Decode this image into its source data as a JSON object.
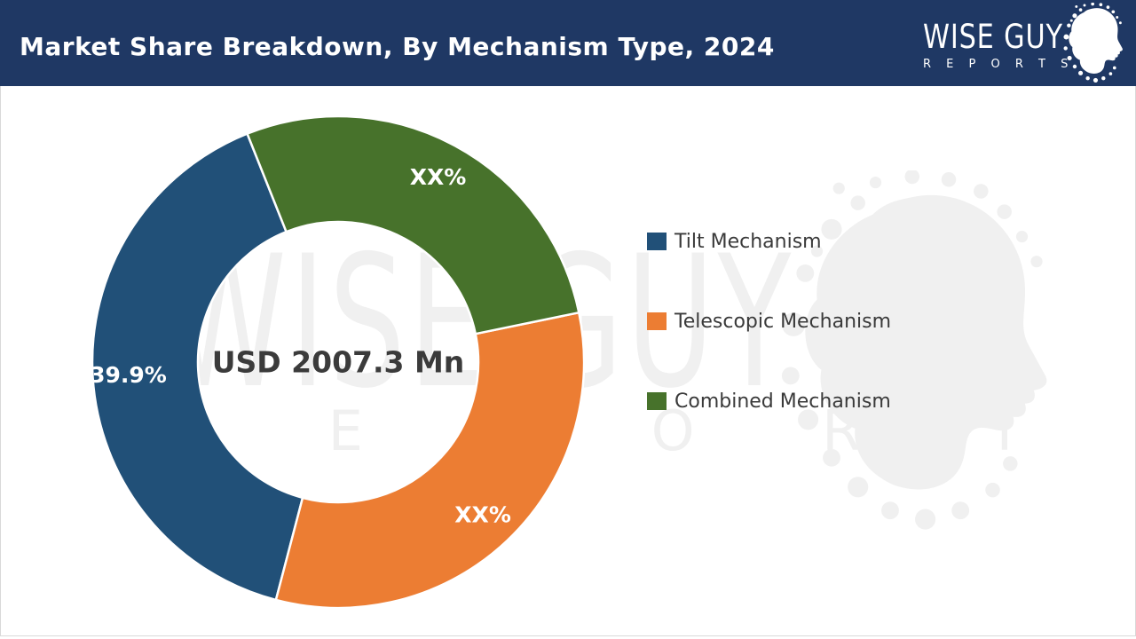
{
  "header": {
    "title": "Market Share Breakdown, By Mechanism Type, 2024",
    "logo": {
      "line1": "WISE GUY",
      "line2": "R E P O R T S"
    }
  },
  "watermark": {
    "line1": "WISE GUY",
    "line2": "R E P O R T S"
  },
  "chart_data": {
    "type": "pie",
    "subtype": "donut",
    "title": "Market Share Breakdown, By Mechanism Type, 2024",
    "center_label": "USD 2007.3 Mn",
    "legend_position": "right",
    "start_angle_deg": 111.7,
    "direction": "counterclockwise",
    "outer_radius_px": 277,
    "inner_radius_px": 158,
    "label_radius_px": 237,
    "segments": [
      {
        "name": "Tilt Mechanism",
        "value_pct": 39.9,
        "label": "39.9%",
        "color": "#215078"
      },
      {
        "name": "Telescopic Mechanism",
        "value_pct": 32.3,
        "label": "XX%",
        "color": "#EC7D33"
      },
      {
        "name": "Combined Mechanism",
        "value_pct": 27.8,
        "label": "XX%",
        "color": "#47722B"
      }
    ],
    "colors": {
      "header_navy": "#1F3864",
      "text_dark": "#3a3a3a",
      "watermark_gray": "#f0f0f0",
      "border_gray": "#d9d9d9"
    }
  }
}
